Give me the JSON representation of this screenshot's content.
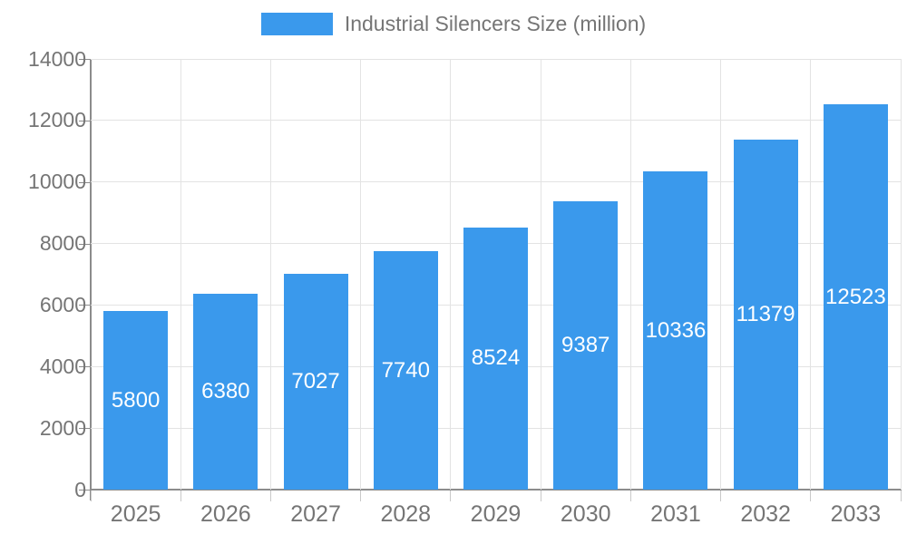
{
  "chart_data": {
    "type": "bar",
    "title": "",
    "legend": {
      "label": "Industrial Silencers Size (million)",
      "position": "top-center"
    },
    "categories": [
      "2025",
      "2026",
      "2027",
      "2028",
      "2029",
      "2030",
      "2031",
      "2032",
      "2033"
    ],
    "series": [
      {
        "name": "Industrial Silencers Size (million)",
        "values": [
          5800,
          6380,
          7027,
          7740,
          8524,
          9387,
          10336,
          11379,
          12523
        ]
      }
    ],
    "xlabel": "",
    "ylabel": "",
    "ylim": [
      0,
      14000
    ],
    "ytick_step": 2000,
    "ytick_labels": [
      "0",
      "2000",
      "4000",
      "6000",
      "8000",
      "10000",
      "12000",
      "14000"
    ],
    "grid": true,
    "value_label_position": "inside-center",
    "colors": {
      "bar": "#3A99EC",
      "grid_line": "#E3E3E3",
      "axis_line": "#8C8C8C",
      "x_boundary_tick": "#C9C9C9",
      "axis_label_text": "#757575",
      "legend_text": "#757575",
      "value_label_text": "#FFFFFF",
      "background": "#FFFFFF"
    }
  }
}
